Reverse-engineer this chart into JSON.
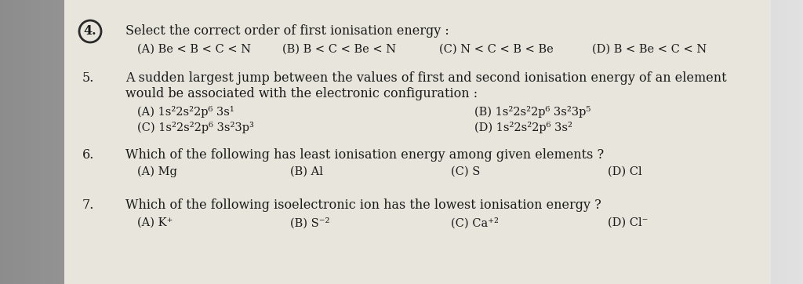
{
  "bg_color": "#c8c8c8",
  "paper_color": "#e8e6e0",
  "text_color": "#1a1a1a",
  "q4_text": "Select the correct order of first ionisation energy :",
  "q4_options_A": "(A) Be < B < C < N",
  "q4_options_B": "(B) B < C < Be < N",
  "q4_options_C": "(C) N < C < B < Be",
  "q4_options_D": "(D) B < Be < C < N",
  "q5_line1": "A sudden largest jump between the values of first and second ionisation energy of an element",
  "q5_line2": "would be associated with the electronic configuration :",
  "q5_A": "(A) 1s²2s²2p⁶ 3s¹",
  "q5_B": "(B) 1s²2s²2p⁶ 3s²3p⁵",
  "q5_C": "(C) 1s²2s²2p⁶ 3s²3p³",
  "q5_D": "(D) 1s²2s²2p⁶ 3s²",
  "q6_text": "Which of the following has least ionisation energy among given elements ?",
  "q6_A": "(A) Mg",
  "q6_B": "(B) Al",
  "q6_C": "(C) S",
  "q6_D": "(D) Cl",
  "q7_text": "Which of the following isoelectronic ion has the lowest ionisation energy ?",
  "q7_A": "(A) K⁺",
  "q7_B": "(B) S⁻²",
  "q7_C": "(C) Ca⁺²",
  "q7_D": "(D) Cl⁻",
  "figw": 10.24,
  "figh": 3.62,
  "dpi": 100
}
